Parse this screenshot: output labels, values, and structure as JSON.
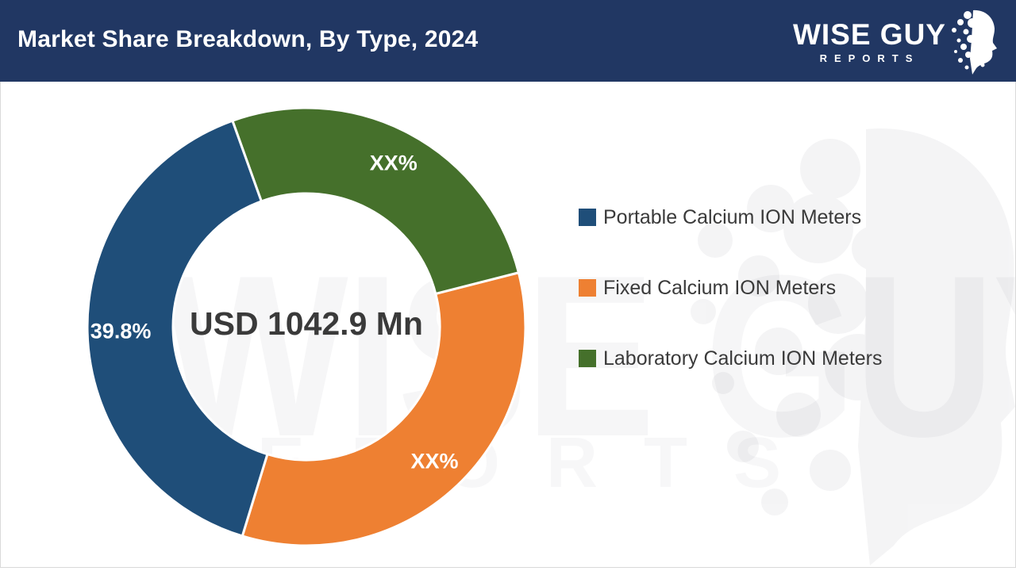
{
  "header": {
    "title": "Market Share Breakdown, By Type, 2024",
    "bg_color": "#213763",
    "logo": {
      "line1": "WISE GUY",
      "line2": "REPORTS"
    }
  },
  "watermark": {
    "line1": "WISE GUY",
    "line2": "REPORTS"
  },
  "chart_data": {
    "type": "pie",
    "subtype": "donut",
    "title": "Market Share Breakdown, By Type, 2024",
    "center_label": "USD 1042.9 Mn",
    "total_value_usd_mn": 1042.9,
    "legend_position": "right",
    "start_angle_deg": 197,
    "draw_order": [
      0,
      2,
      1
    ],
    "slices": [
      {
        "name": "Portable Calcium ION Meters",
        "value_pct": 39.8,
        "label": "39.8%",
        "color": "#1F4E79"
      },
      {
        "name": "Fixed Calcium ION Meters",
        "value_pct": 33.7,
        "label": "XX%",
        "color": "#EE8032"
      },
      {
        "name": "Laboratory Calcium ION Meters",
        "value_pct": 26.5,
        "label": "XX%",
        "color": "#45702B"
      }
    ]
  }
}
